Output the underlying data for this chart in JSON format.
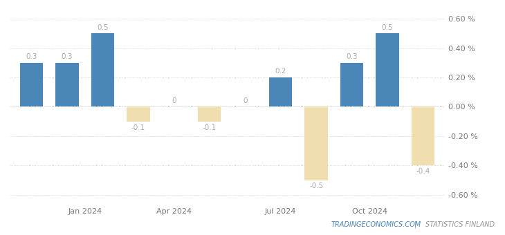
{
  "values": [
    0.3,
    0.3,
    0.5,
    -0.1,
    0,
    -0.1,
    0,
    0.2,
    -0.5,
    0.3,
    0.5,
    -0.4
  ],
  "x_positions": [
    0,
    1,
    2,
    3,
    4,
    5,
    6,
    7,
    8,
    9,
    10,
    11
  ],
  "bar_width": 0.65,
  "positive_color": "#4a86b8",
  "negative_color": "#f0ddb0",
  "ylim": [
    -0.65,
    0.68
  ],
  "yticks": [
    -0.6,
    -0.4,
    -0.2,
    0.0,
    0.2,
    0.4,
    0.6
  ],
  "xlim": [
    -0.6,
    11.6
  ],
  "xtick_positions": [
    1.5,
    4.0,
    7.0,
    9.5
  ],
  "xtick_labels": [
    "Jan 2024",
    "Apr 2024",
    "Jul 2024",
    "Oct 2024"
  ],
  "grid_color": "#cccccc",
  "background_color": "#ffffff",
  "footer_text_left": "TRADINGECONOMICS.COM",
  "footer_sep": "  |  ",
  "footer_text_right": "STATISTICS FINLAND",
  "footer_color_blue": "#4a86b8",
  "footer_color_gray": "#999999",
  "label_fontsize": 7.5,
  "tick_fontsize": 8,
  "footer_fontsize": 7
}
